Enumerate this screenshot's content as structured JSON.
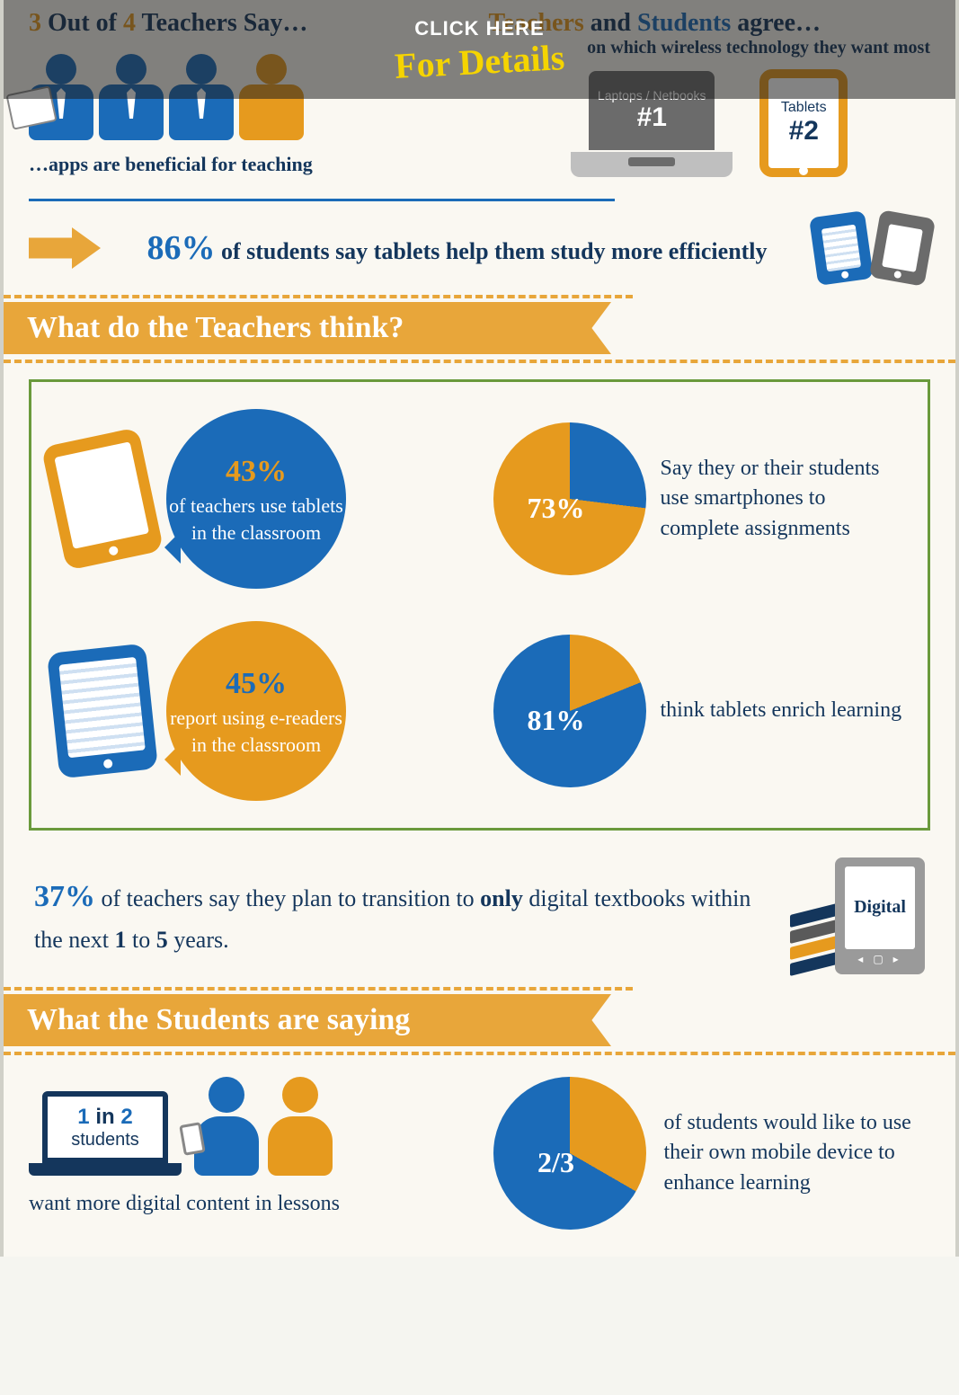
{
  "colors": {
    "orange": "#e69a1e",
    "ribbon": "#e8a63a",
    "blue": "#1b6bb8",
    "navy": "#14365c",
    "grey": "#6b6b6b",
    "lightgrey": "#bfbfbf",
    "green_border": "#6a9a3c",
    "bg": "#faf8f2"
  },
  "overlay": {
    "line1": "CLICK HERE",
    "line2": "For Details"
  },
  "top_left": {
    "heading_num1": "3",
    "heading_mid": " Out of ",
    "heading_num2": "4",
    "heading_rest": " Teachers Say…",
    "icon_colors": [
      "#1b6bb8",
      "#1b6bb8",
      "#1b6bb8",
      "#e69a1e"
    ],
    "subline": "…apps are beneficial for teaching"
  },
  "top_right": {
    "h_part1": "Teachers",
    "h_part2": " and ",
    "h_part3": "Students",
    "h_part4": " agree…",
    "sub": "on which wireless technology they want most",
    "laptop_label": "Laptops / Netbooks",
    "laptop_rank": "#1",
    "tablet_label": "Tablets",
    "tablet_rank": "#2"
  },
  "stat86": {
    "pct": "86%",
    "rest": " of students say tablets help them study more efficiently"
  },
  "ribbon1": "What do the Teachers think?",
  "teacher_box": {
    "c1": {
      "pct": "43%",
      "pct_color": "#e69a1e",
      "text": "of teachers use tablets in the classroom",
      "bubble": "blue",
      "icon": "orange"
    },
    "c2": {
      "pct": "73%",
      "text": "Say they or their students use smartphones to complete assignments",
      "pie_bg": "#e69a1e",
      "slice": "#1b6bb8",
      "slice_deg": 97
    },
    "c3": {
      "pct": "45%",
      "pct_color": "#1b6bb8",
      "text": "report using e-readers in the classroom",
      "bubble": "orange",
      "icon": "blue"
    },
    "c4": {
      "pct": "81%",
      "text": "think tablets enrich learning",
      "pie_bg": "#1b6bb8",
      "slice": "#e69a1e",
      "slice_deg": 68
    }
  },
  "stat37": {
    "pct": "37%",
    "line": " of teachers say they plan to transition to ",
    "bold1": "only",
    "line2": " digital textbooks within the next ",
    "bold2": "1",
    "to": " to ",
    "bold3": "5",
    "tail": " years.",
    "device_label": "Digital",
    "book_colors": [
      "#14365c",
      "#5a5a5a",
      "#e69a1e",
      "#14365c"
    ]
  },
  "ribbon2": "What the Students are saying",
  "students": {
    "left": {
      "big_a": "1",
      "big_mid": " in ",
      "big_b": "2",
      "small": "students",
      "person_colors": [
        "#1b6bb8",
        "#e69a1e"
      ],
      "caption": "want more digital content in lessons"
    },
    "right": {
      "frac": "2/3",
      "text": "of students would like to use their own mobile device to enhance learning",
      "pie_bg": "#1b6bb8",
      "slice": "#e69a1e",
      "slice_deg": 120
    }
  }
}
